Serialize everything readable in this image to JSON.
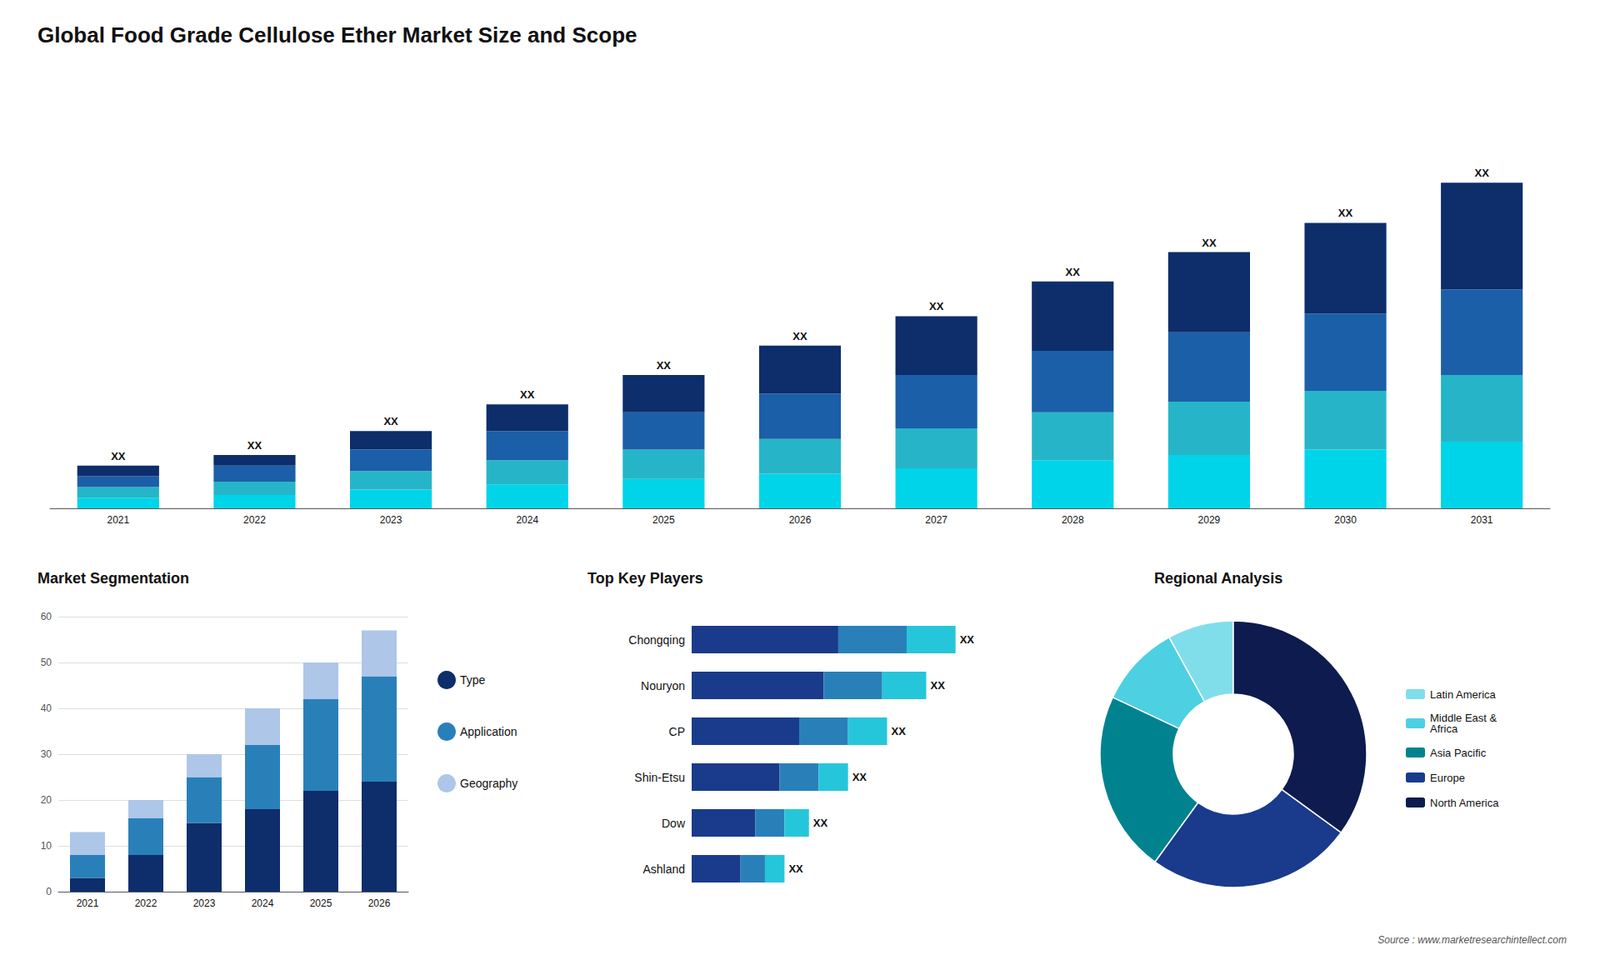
{
  "chart_data": [
    {
      "type": "bar",
      "title": "Global Food Grade Cellulose Ether Market Size and Scope",
      "categories": [
        "2021",
        "2022",
        "2023",
        "2024",
        "2025",
        "2026",
        "2027",
        "2028",
        "2029",
        "2030",
        "2031"
      ],
      "stacked": true,
      "series": [
        {
          "color": "#00d4e8",
          "values": [
            2.0,
            2.5,
            3.5,
            4.5,
            5.5,
            6.5,
            7.5,
            9.0,
            10.0,
            11.0,
            12.5
          ]
        },
        {
          "color": "#26b5c8",
          "values": [
            2.0,
            2.5,
            3.5,
            4.5,
            5.5,
            6.5,
            7.5,
            9.0,
            10.0,
            11.0,
            12.5
          ]
        },
        {
          "color": "#1a5fa8",
          "values": [
            2.0,
            3.0,
            4.0,
            5.5,
            7.0,
            8.5,
            10.0,
            11.5,
            13.0,
            14.5,
            16.0
          ]
        },
        {
          "color": "#0d2d6b",
          "values": [
            2.0,
            2.0,
            3.5,
            5.0,
            7.0,
            9.0,
            11.0,
            13.0,
            15.0,
            17.0,
            20.0
          ]
        }
      ],
      "ylim": [
        0,
        78.08
      ],
      "tick_labels": "x",
      "grid": false,
      "annotations": [
        {
          "text": "XX",
          "x": "2021"
        },
        {
          "text": "XX",
          "x": "2022"
        },
        {
          "text": "XX",
          "x": "2023"
        },
        {
          "text": "XX",
          "x": "2024"
        },
        {
          "text": "XX",
          "x": "2025"
        },
        {
          "text": "XX",
          "x": "2026"
        },
        {
          "text": "XX",
          "x": "2027"
        },
        {
          "text": "XX",
          "x": "2028"
        },
        {
          "text": "XX",
          "x": "2029"
        },
        {
          "text": "XX",
          "x": "2030"
        },
        {
          "text": "XX",
          "x": "2031"
        },
        {
          "text": "Source : www.marketresearchintellect.com"
        }
      ]
    },
    {
      "type": "bar",
      "title": "Market Segmentation",
      "categories": [
        "2021",
        "2022",
        "2023",
        "2024",
        "2025",
        "2026"
      ],
      "stacked": true,
      "series": [
        {
          "name": "Type",
          "color": "#0d2d6b",
          "values": [
            3,
            8,
            15,
            18,
            22,
            24
          ]
        },
        {
          "name": "Application",
          "color": "#2980b9",
          "values": [
            5,
            8,
            10,
            14,
            20,
            23
          ]
        },
        {
          "name": "Geography",
          "color": "#aec6e8",
          "values": [
            5,
            4,
            5,
            8,
            8,
            10
          ]
        }
      ],
      "ylim": [
        0,
        60
      ],
      "yticks": [
        0,
        10,
        20,
        30,
        40,
        50,
        60
      ],
      "grid": true,
      "legend": "right"
    },
    {
      "type": "bar",
      "title": "Top Key Players",
      "orientation": "horizontal",
      "categories": [
        "Chongqing",
        "Nouryon",
        "CP",
        "Shin-Etsu",
        "Dow",
        "Ashland"
      ],
      "stacked": true,
      "series": [
        {
          "color": "#1a3a8c",
          "values": [
            30,
            27,
            22,
            18,
            13,
            10
          ]
        },
        {
          "color": "#2980b9",
          "values": [
            14,
            12,
            10,
            8,
            6,
            5
          ]
        },
        {
          "color": "#26c6da",
          "values": [
            10,
            9,
            8,
            6,
            5,
            4
          ]
        }
      ],
      "xlim": [
        0,
        64.8
      ],
      "tick_labels": "y",
      "grid": false,
      "annotations": [
        {
          "text": "XX",
          "y": "Chongqing"
        },
        {
          "text": "XX",
          "y": "Nouryon"
        },
        {
          "text": "XX",
          "y": "CP"
        },
        {
          "text": "XX",
          "y": "Shin-Etsu"
        },
        {
          "text": "XX",
          "y": "Dow"
        },
        {
          "text": "XX",
          "y": "Ashland"
        }
      ]
    },
    {
      "type": "pie",
      "title": "Regional Analysis",
      "categories": [
        "Latin America",
        "Middle East &\nAfrica",
        "Asia Pacific",
        "Europe",
        "North America"
      ],
      "values": [
        8,
        10,
        22,
        25,
        35
      ],
      "colors": [
        "#80deea",
        "#4dd0e1",
        "#00838f",
        "#1a3a8c",
        "#0d1b4e"
      ],
      "legend": "right"
    }
  ]
}
